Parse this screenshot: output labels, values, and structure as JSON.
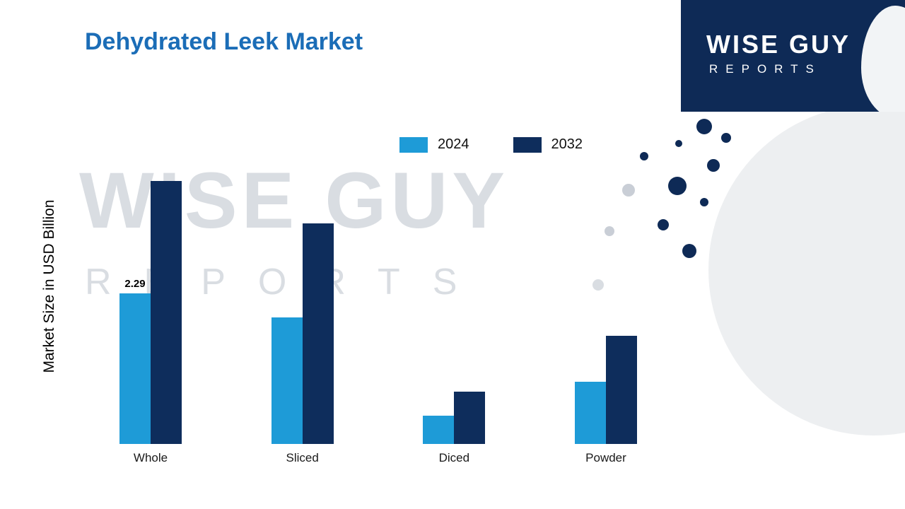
{
  "title": "Dehydrated Leek Market",
  "logo": {
    "line1": "WISE GUY",
    "line2": "REPORTS"
  },
  "watermark": {
    "line1": "WISE GUY",
    "line2": "REPORTS"
  },
  "colors": {
    "title_blue": "#1B6DB7",
    "series_2024": "#1E9BD7",
    "series_2032": "#0E2D5C",
    "logo_background": "#0E2A56",
    "watermark_gray": "#D9DDE2",
    "background_circle": "#EDEFF1"
  },
  "chart_data": {
    "type": "bar",
    "title": "Dehydrated Leek Market",
    "categories": [
      "Whole",
      "Sliced",
      "Diced",
      "Powder"
    ],
    "series": [
      {
        "name": "2024",
        "color": "#1E9BD7",
        "values": [
          2.29,
          1.92,
          0.43,
          0.95
        ]
      },
      {
        "name": "2032",
        "color": "#0E2D5C",
        "values": [
          4.0,
          3.35,
          0.8,
          1.65
        ]
      }
    ],
    "xlabel": "",
    "ylabel": "Market Size in USD Billion",
    "ylim": [
      0,
      4.0
    ],
    "grid": false,
    "legend_position": "top",
    "annotations": [
      {
        "category": "Whole",
        "series": "2024",
        "text": "2.29"
      }
    ]
  }
}
